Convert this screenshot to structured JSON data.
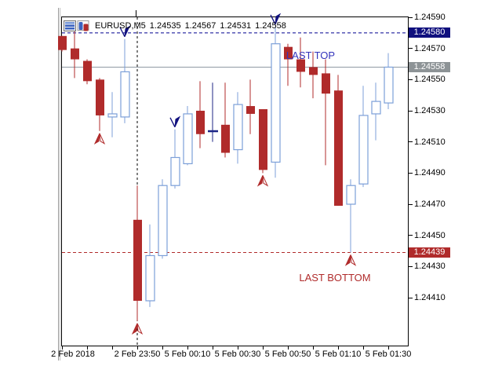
{
  "window": {
    "title_bar": {
      "icons": [
        {
          "name": "market-watch-icon"
        },
        {
          "name": "chart-icon"
        }
      ],
      "symbol_period": "EURUSD,M5",
      "ohlc": {
        "open": "1.24535",
        "high": "1.24567",
        "low": "1.24531",
        "close": "1.24558"
      }
    }
  },
  "colors": {
    "bear": "#b02b2b",
    "bull_outline": "#7c9fd8",
    "doji": "#1c2586",
    "top_line": "#000090",
    "bottom_line": "#b02b2b",
    "current_line": "#909aa3",
    "separator_line": "#000000",
    "top_badge_bg": "#10107e",
    "current_badge_bg": "#8d9396",
    "bottom_badge_bg": "#b02b2b",
    "top_text_color": "#3434bb",
    "bottom_text_color": "#b02b2b",
    "arrow_top": "#10107e",
    "arrow_bottom": "#b02b2b"
  },
  "chart_data": {
    "type": "candlestick",
    "title": "EURUSD,M5",
    "xlabel": "",
    "ylabel": "",
    "ylim": [
      1.2439,
      1.246
    ],
    "grid": "off",
    "annotations": {
      "top_text": "LAST TOP",
      "bottom_text": "LAST BOTTOM"
    },
    "levels": {
      "last_top": 1.2458,
      "last_bottom": 1.24439,
      "current_price": 1.24558
    },
    "separator_bar": 6,
    "price_axis_ticks": [
      "1.24590",
      "1.24570",
      "1.24550",
      "1.24530",
      "1.24510",
      "1.24490",
      "1.24470",
      "1.24450",
      "1.24430",
      "1.24410"
    ],
    "price_badges": [
      {
        "value": "1.24580",
        "kind": "last-top-level"
      },
      {
        "value": "1.24558",
        "kind": "current-price"
      },
      {
        "value": "1.24439",
        "kind": "last-bottom-level"
      }
    ],
    "time_labels": [
      {
        "label": "2 Feb 2018",
        "bar": 2,
        "dx": -18
      },
      {
        "label": "2 Feb 23:50",
        "bar": 6,
        "dx": 0
      },
      {
        "label": "5 Feb 00:10",
        "bar": 10,
        "dx": 0
      },
      {
        "label": "5 Feb 00:30",
        "bar": 14,
        "dx": 0
      },
      {
        "label": "5 Feb 00:50",
        "bar": 18,
        "dx": 0
      },
      {
        "label": "5 Feb 01:10",
        "bar": 22,
        "dx": 0
      },
      {
        "label": "5 Feb 01:30",
        "bar": 26,
        "dx": 0
      }
    ],
    "candles": [
      {
        "time": "23:20",
        "o": 1.24578,
        "h": 1.24578,
        "l": 1.24568,
        "c": 1.24569,
        "dir": "bear"
      },
      {
        "time": "23:25",
        "o": 1.2457,
        "h": 1.24586,
        "l": 1.24551,
        "c": 1.24563,
        "dir": "bear"
      },
      {
        "time": "23:30",
        "o": 1.24562,
        "h": 1.24563,
        "l": 1.24547,
        "c": 1.24549,
        "dir": "bear"
      },
      {
        "time": "23:35",
        "o": 1.2455,
        "h": 1.24551,
        "l": 1.24517,
        "c": 1.24527,
        "dir": "bear"
      },
      {
        "time": "23:40",
        "o": 1.24526,
        "h": 1.24542,
        "l": 1.24513,
        "c": 1.24528,
        "dir": "bull"
      },
      {
        "time": "23:45",
        "o": 1.24526,
        "h": 1.24576,
        "l": 1.24522,
        "c": 1.24555,
        "dir": "bull"
      },
      {
        "time": "23:50",
        "o": 1.2446,
        "h": 1.24482,
        "l": 1.24395,
        "c": 1.24408,
        "dir": "bear"
      },
      {
        "time": "23:55",
        "o": 1.24408,
        "h": 1.24457,
        "l": 1.24404,
        "c": 1.24437,
        "dir": "bull"
      },
      {
        "time": "00:00",
        "o": 1.24437,
        "h": 1.24486,
        "l": 1.24435,
        "c": 1.24482,
        "dir": "bull"
      },
      {
        "time": "00:05",
        "o": 1.24482,
        "h": 1.24518,
        "l": 1.2448,
        "c": 1.245,
        "dir": "bull"
      },
      {
        "time": "00:10",
        "o": 1.24496,
        "h": 1.24533,
        "l": 1.24495,
        "c": 1.24528,
        "dir": "bull"
      },
      {
        "time": "00:15",
        "o": 1.2453,
        "h": 1.24549,
        "l": 1.24506,
        "c": 1.24515,
        "dir": "bear"
      },
      {
        "time": "00:20",
        "o": 1.24517,
        "h": 1.24548,
        "l": 1.2451,
        "c": 1.24517,
        "dir": "doji"
      },
      {
        "time": "00:25",
        "o": 1.24521,
        "h": 1.24548,
        "l": 1.245,
        "c": 1.24503,
        "dir": "bear"
      },
      {
        "time": "00:30",
        "o": 1.24505,
        "h": 1.24542,
        "l": 1.24496,
        "c": 1.24534,
        "dir": "bull"
      },
      {
        "time": "00:35",
        "o": 1.24533,
        "h": 1.2455,
        "l": 1.24515,
        "c": 1.24528,
        "dir": "bear"
      },
      {
        "time": "00:40",
        "o": 1.24531,
        "h": 1.24531,
        "l": 1.2449,
        "c": 1.24492,
        "dir": "bear"
      },
      {
        "time": "00:45",
        "o": 1.24497,
        "h": 1.24584,
        "l": 1.24487,
        "c": 1.24573,
        "dir": "bull"
      },
      {
        "time": "00:50",
        "o": 1.24571,
        "h": 1.24573,
        "l": 1.24546,
        "c": 1.24563,
        "dir": "bear"
      },
      {
        "time": "00:55",
        "o": 1.24563,
        "h": 1.24577,
        "l": 1.24545,
        "c": 1.24555,
        "dir": "bear"
      },
      {
        "time": "01:00",
        "o": 1.24558,
        "h": 1.24568,
        "l": 1.24538,
        "c": 1.24553,
        "dir": "bear"
      },
      {
        "time": "01:05",
        "o": 1.24554,
        "h": 1.24563,
        "l": 1.24495,
        "c": 1.24541,
        "dir": "bear"
      },
      {
        "time": "01:10",
        "o": 1.24543,
        "h": 1.24553,
        "l": 1.24469,
        "c": 1.24469,
        "dir": "bear"
      },
      {
        "time": "01:15",
        "o": 1.2447,
        "h": 1.24486,
        "l": 1.24439,
        "c": 1.24482,
        "dir": "bull"
      },
      {
        "time": "01:20",
        "o": 1.24483,
        "h": 1.24546,
        "l": 1.24481,
        "c": 1.24527,
        "dir": "bull"
      },
      {
        "time": "01:25",
        "o": 1.24528,
        "h": 1.24548,
        "l": 1.24511,
        "c": 1.24536,
        "dir": "bull"
      },
      {
        "time": "01:30",
        "o": 1.24535,
        "h": 1.24567,
        "l": 1.24531,
        "c": 1.24558,
        "dir": "bull"
      }
    ],
    "markers": [
      {
        "bar": 3,
        "kind": "bottom-arrow"
      },
      {
        "bar": 6,
        "kind": "bottom-arrow"
      },
      {
        "bar": 16,
        "kind": "bottom-arrow"
      },
      {
        "bar": 23,
        "kind": "bottom-arrow"
      },
      {
        "bar": 5,
        "kind": "top-arrow"
      },
      {
        "bar": 9,
        "kind": "top-arrow"
      },
      {
        "bar": 17,
        "kind": "top-arrow"
      }
    ]
  }
}
